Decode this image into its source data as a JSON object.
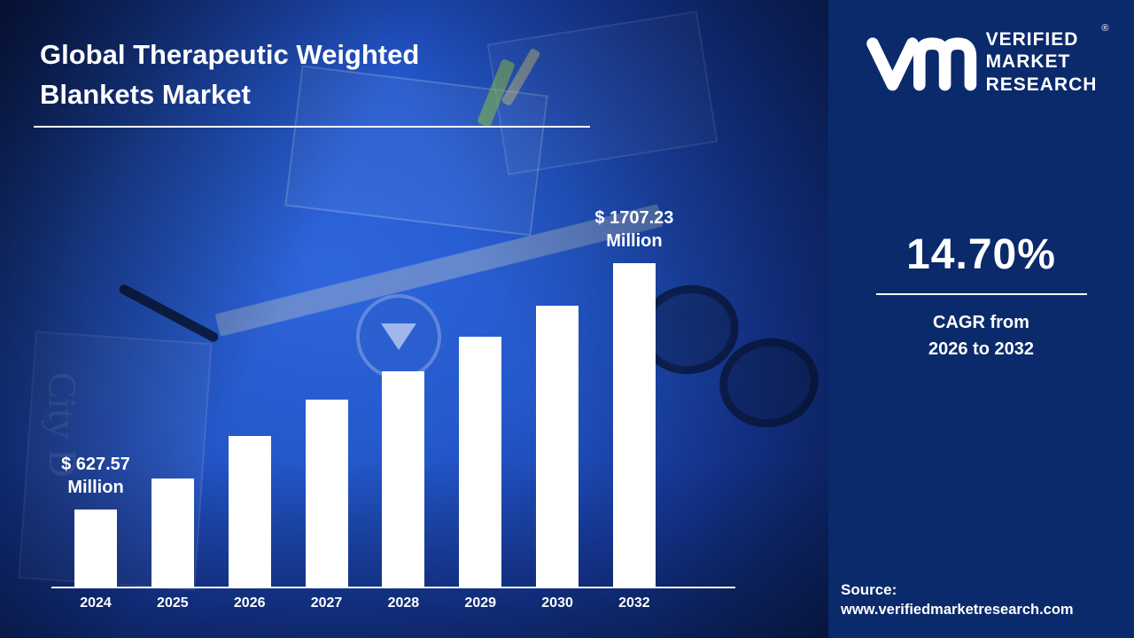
{
  "colors": {
    "left_bg_center": "#2f66dd",
    "left_bg_edge": "#081d50",
    "right_bg": "#0a2a6b",
    "bar": "#ffffff",
    "text": "#ffffff"
  },
  "title": {
    "line1": "Global Therapeutic Weighted",
    "line2": "Blankets Market"
  },
  "background": {
    "photo_text": "City D"
  },
  "brand": {
    "word1": "VERIFIED",
    "word2": "MARKET",
    "word3": "RESEARCH",
    "registered": "®",
    "logo_icon": "vmr-monogram"
  },
  "stats": {
    "value": "14.70%",
    "caption_line1": "CAGR from",
    "caption_line2": "2026 to 2032"
  },
  "source": {
    "label": "Source:",
    "url": "www.verifiedmarketresearch.com"
  },
  "chart_data": {
    "type": "bar",
    "title": "Global Therapeutic Weighted Blankets Market",
    "unit": "USD Million",
    "categories": [
      "2024",
      "2025",
      "2026",
      "2027",
      "2028",
      "2029",
      "2030",
      "2032"
    ],
    "values": [
      627.57,
      765,
      950,
      1110,
      1235,
      1385,
      1520,
      1707.23
    ],
    "note": "Only 2024 and 2032 values are labeled; intermediate values estimated from bar heights",
    "point_labels": {
      "0": {
        "line1": "$ 627.57",
        "line2": "Million"
      },
      "7": {
        "line1": "$ 1707.23",
        "line2": "Million"
      }
    },
    "bar_color": "#ffffff",
    "axis": {
      "baseline": true,
      "gridlines": false,
      "ylim_display": [
        290,
        1707.23
      ]
    },
    "legend": "none"
  }
}
